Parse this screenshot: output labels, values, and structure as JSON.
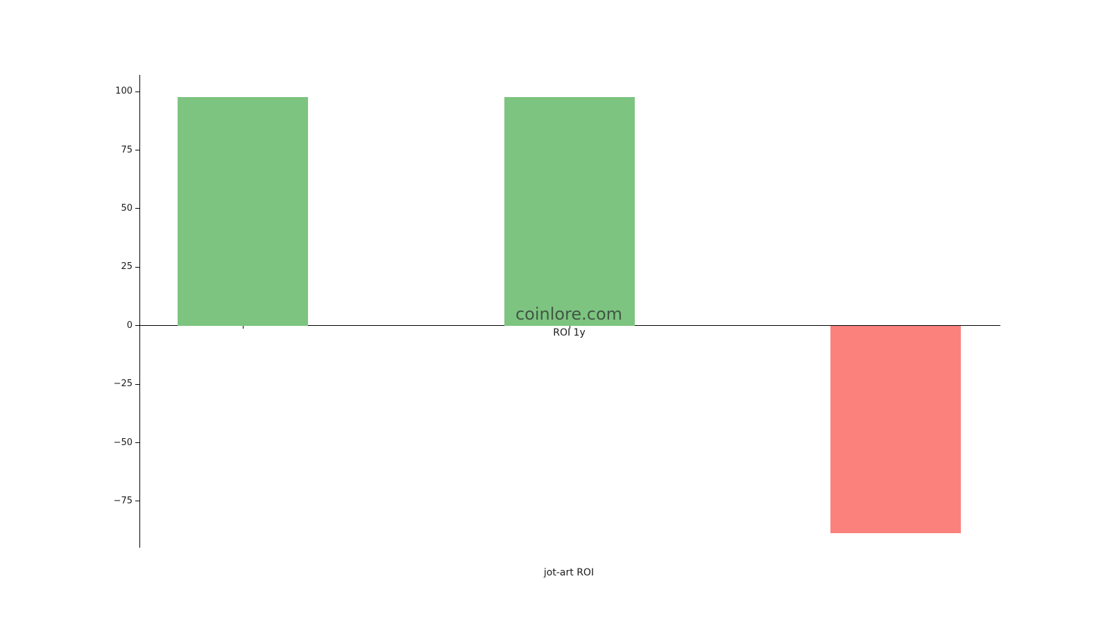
{
  "page": {
    "background_color": "#ffffff"
  },
  "chart_data": {
    "type": "bar",
    "title": "jot-art ROI",
    "watermark": "coinlore.com",
    "categories": [
      "",
      "ROI 1y",
      ""
    ],
    "values": [
      97.6,
      97.6,
      -88.7
    ],
    "bar_colors": [
      "#7dc480",
      "#7dc480",
      "#fa817c"
    ],
    "positive_color": "#7dc480",
    "negative_color": "#fa817c",
    "visible_xtick_label": "ROI 1y",
    "yticks": [
      100,
      75,
      50,
      25,
      0,
      -25,
      -50,
      -75
    ],
    "ytick_labels": [
      "100",
      "75",
      "50",
      "25",
      "0",
      "−25",
      "−50",
      "−75"
    ],
    "ylim": [
      -95,
      107
    ],
    "xlabel": "",
    "ylabel": "",
    "grid": false,
    "legend": null,
    "axis_color": "#000000",
    "text_color": "#1a1a1a"
  }
}
